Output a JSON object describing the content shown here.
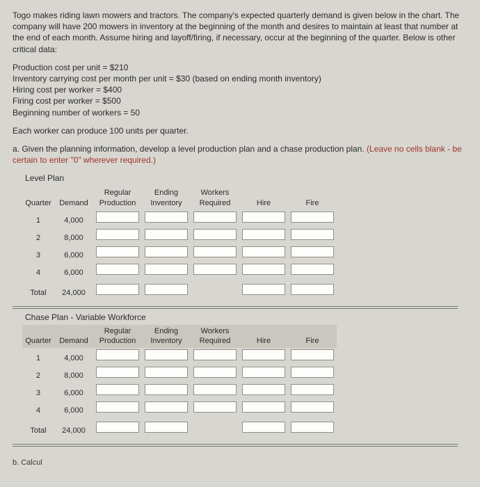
{
  "problem": {
    "intro": "Togo makes riding lawn mowers and tractors. The company's expected quarterly demand is given below in the chart. The company will have 200 mowers in inventory at the beginning of the month and desires to maintain at least that number at the end of each month. Assume hiring and layoff/firing, if necessary, occur at the beginning of the quarter. Below is other critical data:",
    "facts": {
      "prod_cost": "Production cost per unit = $210",
      "carrying": "Inventory carrying cost per month per unit = $30 (based on ending month inventory)",
      "hire_cost": "Hiring cost per worker = $400",
      "fire_cost": "Firing cost per worker = $500",
      "begin_workers": "Beginning number of workers = 50",
      "capacity": "Each worker can produce 100 units per quarter."
    },
    "part_a": "a. Given the planning information, develop a level production plan and a chase production plan.",
    "part_a_note": "(Leave no cells blank - be certain to enter \"0\" wherever required.)"
  },
  "headers": {
    "quarter": "Quarter",
    "demand": "Demand",
    "reg_prod": "Regular Production",
    "end_inv": "Ending Inventory",
    "workers": "Workers Required",
    "hire": "Hire",
    "fire": "Fire",
    "total": "Total"
  },
  "level_plan": {
    "title": "Level Plan",
    "rows": [
      {
        "q": "1",
        "demand": "4,000"
      },
      {
        "q": "2",
        "demand": "8,000"
      },
      {
        "q": "3",
        "demand": "6,000"
      },
      {
        "q": "4",
        "demand": "6,000"
      }
    ],
    "total_demand": "24,000"
  },
  "chase_plan": {
    "title": "Chase Plan - Variable Workforce",
    "rows": [
      {
        "q": "1",
        "demand": "4,000"
      },
      {
        "q": "2",
        "demand": "8,000"
      },
      {
        "q": "3",
        "demand": "6,000"
      },
      {
        "q": "4",
        "demand": "6,000"
      }
    ],
    "total_demand": "24,000"
  },
  "cutoff": "b. Calcul",
  "colors": {
    "background": "#d8d6d0",
    "text": "#2a2a2a",
    "red_text": "#a0342a",
    "input_bg": "#fdfdfb",
    "input_border": "#8f8f8a",
    "shade_bg": "#c9c7c0",
    "rule": "#7a7a74"
  }
}
